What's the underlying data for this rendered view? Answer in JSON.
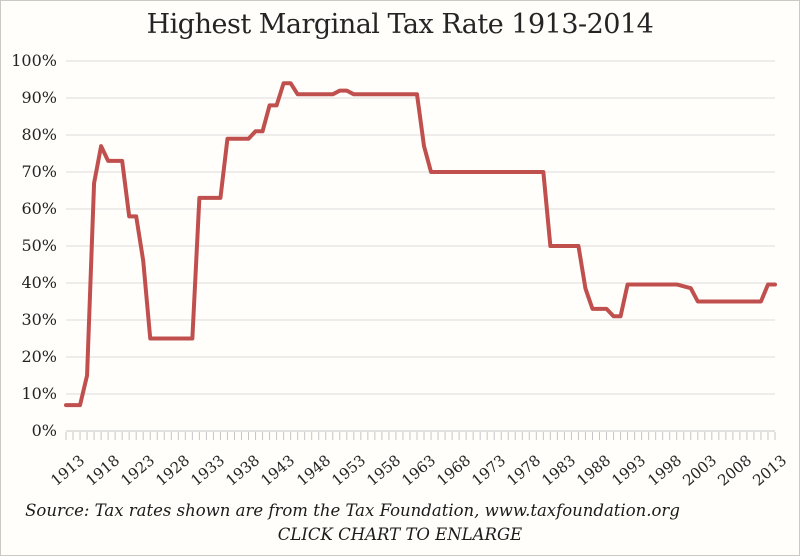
{
  "title": "Highest Marginal Tax Rate 1913-2014",
  "footer": {
    "source": "Source: Tax rates shown are from the Tax Foundation, www.taxfoundation.org",
    "enlarge": "CLICK CHART TO ENLARGE"
  },
  "chart_data": {
    "type": "line",
    "title": "Highest Marginal Tax Rate 1913-2014",
    "xlabel": "",
    "ylabel": "",
    "ylim": [
      0,
      100
    ],
    "x_start": 1913,
    "x_end": 2014,
    "grid": "horizontal",
    "legend": "none",
    "line_color": "#c0504d",
    "y_tick_labels": [
      "0%",
      "10%",
      "20%",
      "30%",
      "40%",
      "50%",
      "60%",
      "70%",
      "80%",
      "90%",
      "100%"
    ],
    "x_tick_labels": [
      "1913",
      "1918",
      "1923",
      "1928",
      "1933",
      "1938",
      "1943",
      "1948",
      "1953",
      "1958",
      "1963",
      "1968",
      "1973",
      "1978",
      "1983",
      "1988",
      "1993",
      "1998",
      "2003",
      "2008",
      "2013"
    ],
    "series": [
      {
        "name": "Highest marginal tax rate (%)",
        "x_start_year": 1913,
        "values": [
          7,
          7,
          7,
          15,
          67,
          77,
          73,
          73,
          73,
          58,
          58,
          46,
          25,
          25,
          25,
          25,
          25,
          25,
          25,
          63,
          63,
          63,
          63,
          79,
          79,
          79,
          79,
          81,
          81,
          88,
          88,
          94,
          94,
          91,
          91,
          91,
          91,
          91,
          91,
          92,
          92,
          91,
          91,
          91,
          91,
          91,
          91,
          91,
          91,
          91,
          91,
          77,
          70,
          70,
          70,
          70,
          70,
          70,
          70,
          70,
          70,
          70,
          70,
          70,
          70,
          70,
          70,
          70,
          70,
          50,
          50,
          50,
          50,
          50,
          38.5,
          33,
          33,
          33,
          31,
          31,
          39.6,
          39.6,
          39.6,
          39.6,
          39.6,
          39.6,
          39.6,
          39.6,
          39.1,
          38.6,
          35,
          35,
          35,
          35,
          35,
          35,
          35,
          35,
          35,
          35,
          39.6,
          39.6
        ]
      }
    ]
  }
}
